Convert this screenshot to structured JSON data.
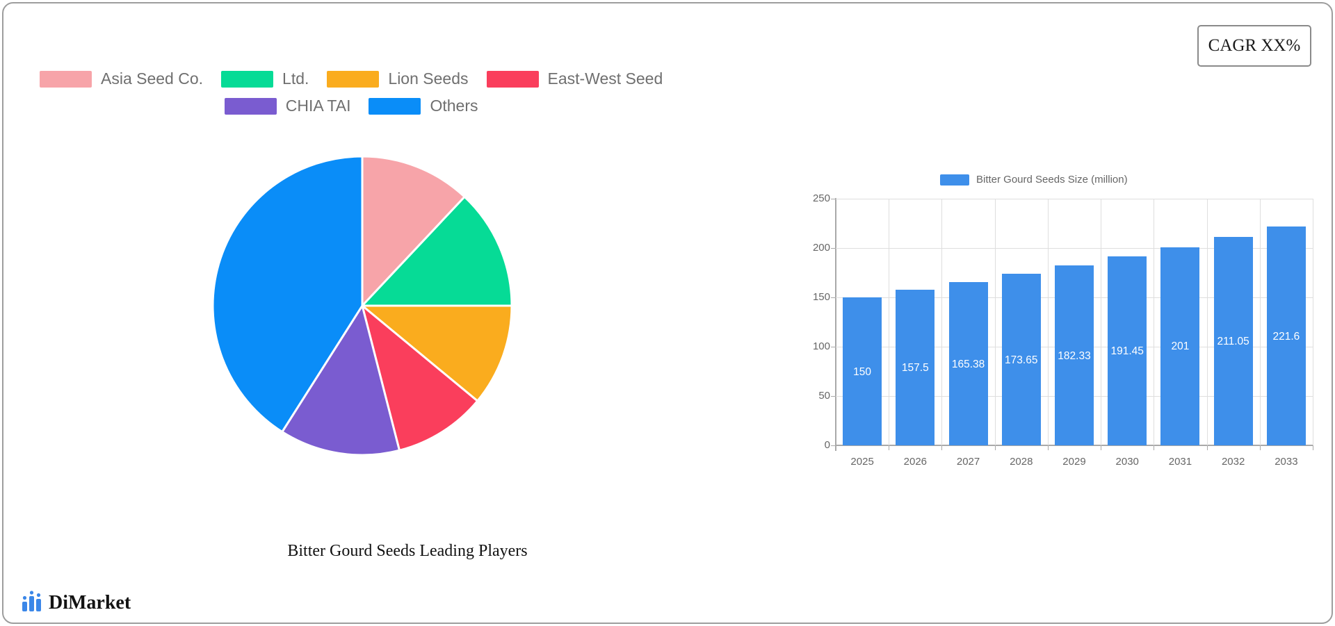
{
  "cagr_label": "CAGR XX%",
  "brand": {
    "name": "DiMarket",
    "icon_color": "#3b87e8"
  },
  "chart_data": [
    {
      "type": "pie",
      "title": "Bitter Gourd Seeds Leading Players",
      "labels": [
        "Asia Seed Co.",
        "Ltd.",
        "Lion Seeds",
        "East-West Seed",
        "CHIA TAI",
        "Others"
      ],
      "values": [
        12,
        13,
        11,
        10,
        13,
        41
      ],
      "colors": [
        "#F7A4A9",
        "#06DB96",
        "#FAAC1E",
        "#FA3E5C",
        "#7A5CD0",
        "#0A8DF8"
      ],
      "legend_position": "top",
      "legend_rows": [
        4,
        2
      ]
    },
    {
      "type": "bar",
      "categories": [
        "2025",
        "2026",
        "2027",
        "2028",
        "2029",
        "2030",
        "2031",
        "2032",
        "2033"
      ],
      "series": [
        {
          "name": "Bitter Gourd Seeds Size (million)",
          "values": [
            150,
            157.5,
            165.38,
            173.65,
            182.33,
            191.45,
            201,
            211.05,
            221.6
          ]
        }
      ],
      "ylim": [
        0,
        250
      ],
      "yticks": [
        0,
        50,
        100,
        150,
        200,
        250
      ],
      "bar_color": "#3E8FEA",
      "grid": true,
      "legend_position": "top"
    }
  ]
}
